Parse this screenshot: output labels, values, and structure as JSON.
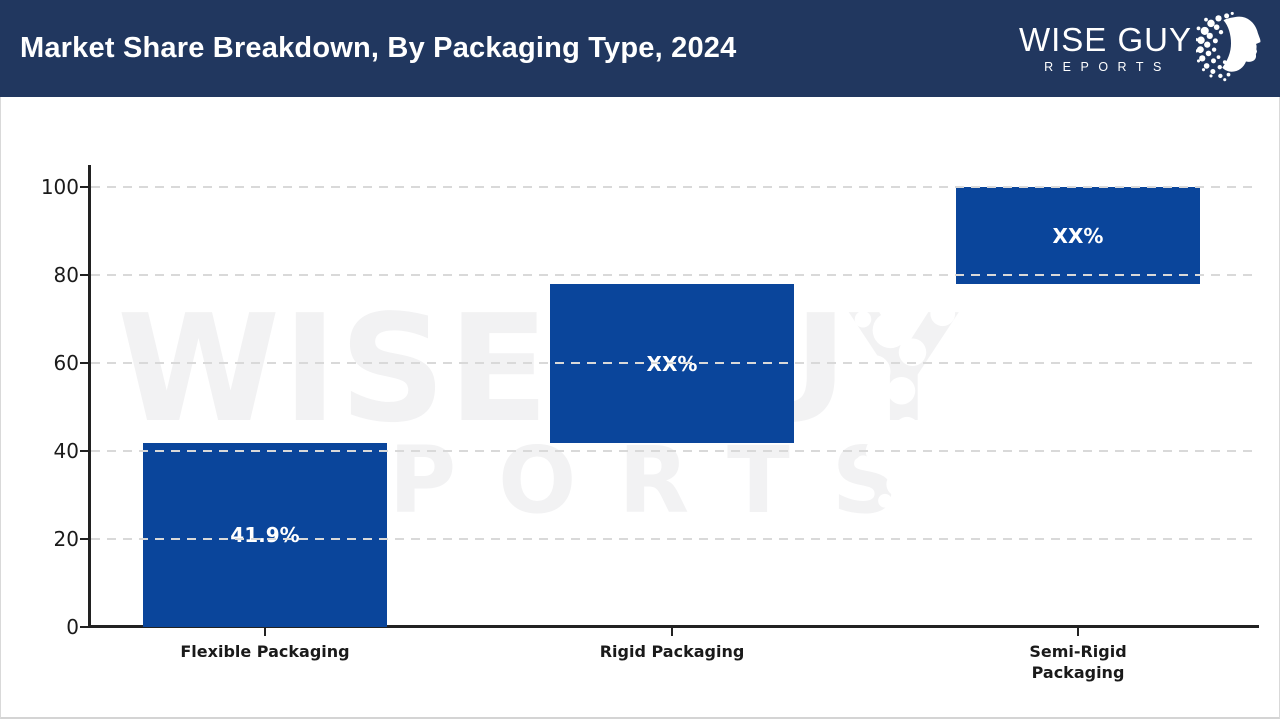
{
  "header": {
    "title": "Market Share Breakdown, By Packaging Type, 2024",
    "bg_color": "#21375f",
    "text_color": "#ffffff",
    "logo": {
      "line1": "WISE GUY",
      "line2": "REPORTS"
    }
  },
  "watermark": {
    "line1": "WISE GUY",
    "line2": "REPORTS",
    "color": "#f2f2f3"
  },
  "chart_data": {
    "type": "bar",
    "subtype": "stacked-waterfall",
    "title": "Market Share Breakdown, By Packaging Type, 2024",
    "categories": [
      "Flexible Packaging",
      "Rigid Packaging",
      "Semi-Rigid Packaging"
    ],
    "categories_lines": [
      [
        "Flexible Packaging"
      ],
      [
        "Rigid Packaging"
      ],
      [
        "Semi-Rigid",
        "Packaging"
      ]
    ],
    "segments": [
      {
        "label": "41.9%",
        "start": 0,
        "end": 41.9
      },
      {
        "label": "XX%",
        "start": 41.9,
        "end": 78
      },
      {
        "label": "XX%",
        "start": 78,
        "end": 100
      }
    ],
    "values_approx": [
      41.9,
      36.1,
      22.0
    ],
    "yticks": [
      0,
      20,
      40,
      60,
      80,
      100
    ],
    "ylim": [
      0,
      105
    ],
    "xlabel": "",
    "ylabel": "",
    "grid": "dashed-horizontal",
    "legend": "none",
    "bar_color": "#0a459b",
    "bar_label_color": "#ffffff",
    "axis_color": "#222222",
    "grid_color": "#d9d9d9",
    "tick_text_color": "#1a1a1a"
  }
}
